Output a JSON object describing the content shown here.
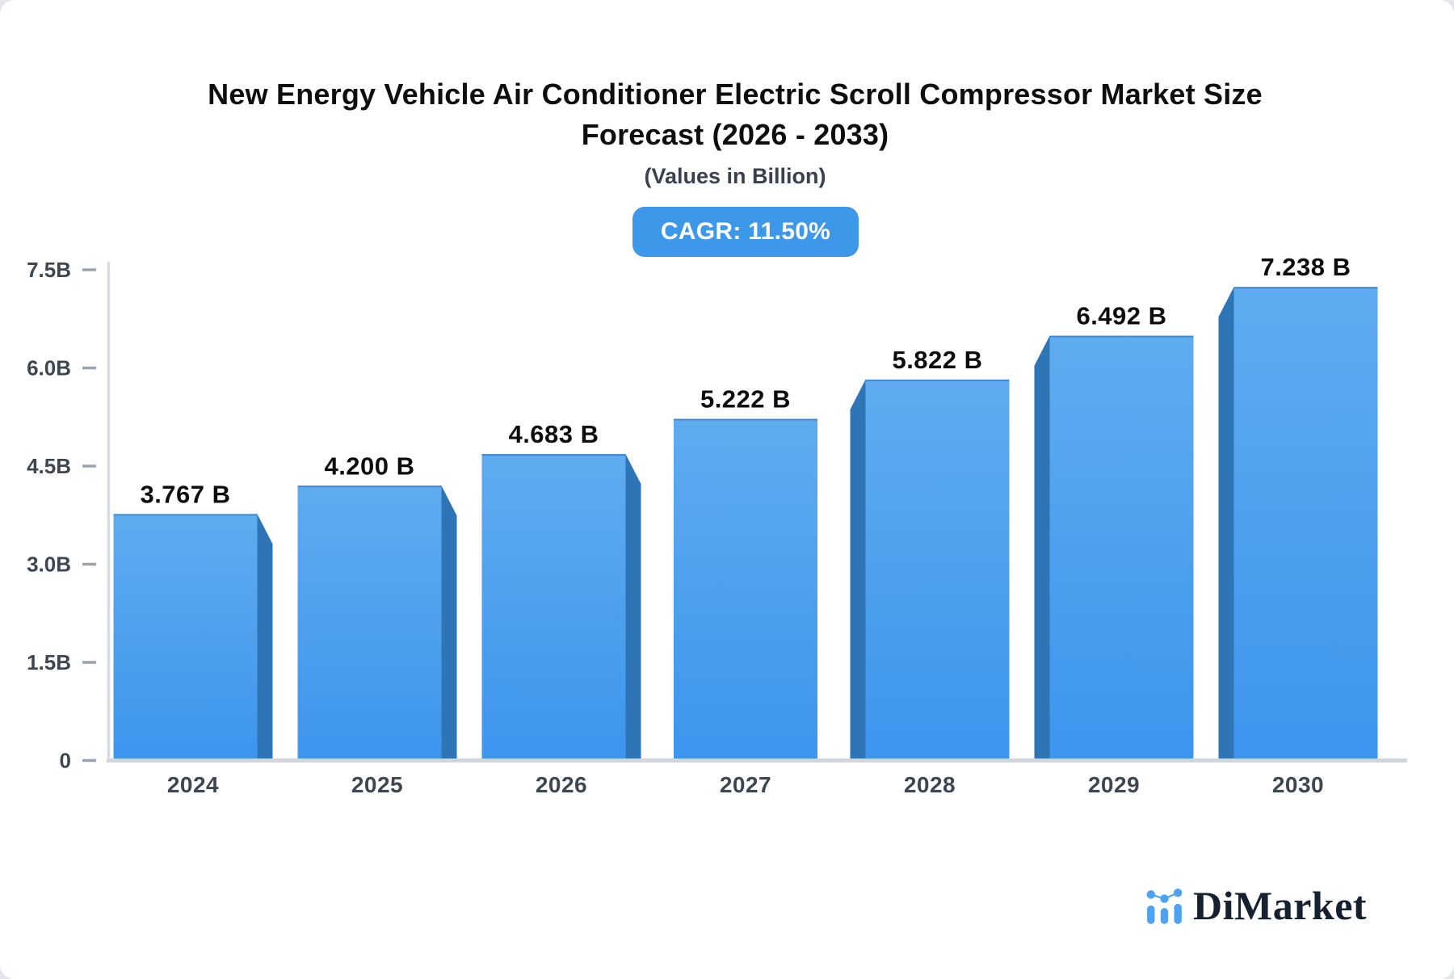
{
  "title": {
    "line1": "New Energy Vehicle Air Conditioner Electric Scroll Compressor Market Size",
    "line2": "Forecast (2026 - 2033)"
  },
  "subtitle": "(Values in Billion)",
  "badge": {
    "label": "CAGR: 11.50%",
    "color": "#3e98e9"
  },
  "brand": {
    "name": "DiMarket"
  },
  "chart_data": {
    "type": "bar",
    "title": "New Energy Vehicle Air Conditioner Electric Scroll Compressor Market Size Forecast (2026 - 2033)",
    "subtitle": "(Values in Billion)",
    "categories": [
      "2024",
      "2025",
      "2026",
      "2027",
      "2028",
      "2029",
      "2030"
    ],
    "values": [
      3.767,
      4.2,
      4.683,
      5.222,
      5.822,
      6.492,
      7.238
    ],
    "value_labels": [
      "3.767 B",
      "4.200 B",
      "4.683 B",
      "5.222 B",
      "5.822 B",
      "6.492 B",
      "7.238 B"
    ],
    "xlabel": "",
    "ylabel": "",
    "ylim": [
      0,
      7.5
    ],
    "yticks": [
      {
        "label": "0",
        "value": 0
      },
      {
        "label": "1.5B",
        "value": 1.5
      },
      {
        "label": "3.0B",
        "value": 3.0
      },
      {
        "label": "4.5B",
        "value": 4.5
      },
      {
        "label": "6.0B",
        "value": 6.0
      },
      {
        "label": "7.5B",
        "value": 7.5
      }
    ],
    "grid": false,
    "legend": false,
    "style": "3d-column",
    "colors": {
      "bar_face_top": "#5fabef",
      "bar_face_bottom": "#3d95ee",
      "bar_top_edge": "#4189d2",
      "bar_side": "#2e75b6",
      "axis_line": "#d8dbdf",
      "baseline": "#d2d6da",
      "tick_mark": "#9ca3ad",
      "tick_label": "#3e4651",
      "category_label": "#3e4651",
      "value_label": "#0d0d0d",
      "logo_icon": "#4da2f1",
      "logo_text": "#16202f"
    }
  }
}
